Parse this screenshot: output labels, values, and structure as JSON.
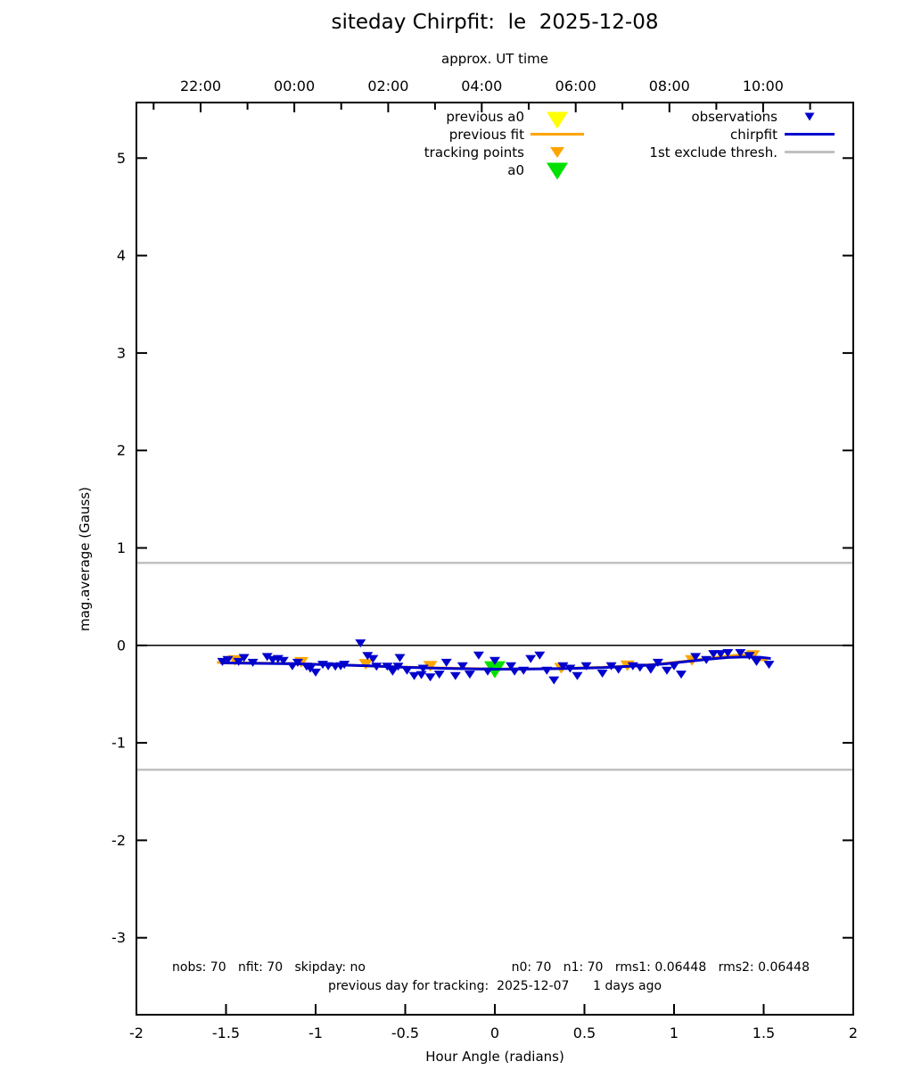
{
  "title": "siteday Chirpfit:  le  2025-12-08",
  "stats": {
    "line1_left": "nobs: 70   nfit: 70   skipday: no",
    "line1_right": "n0: 70   n1: 70   rms1: 0.06448   rms2: 0.06448",
    "line2": "previous day for tracking:  2025-12-07      1 days ago"
  },
  "legend": {
    "left": [
      {
        "label": "previous a0",
        "marker": "triangle-large",
        "color": "#ffff00"
      },
      {
        "label": "previous fit",
        "marker": "line",
        "color": "#ffa500"
      },
      {
        "label": "tracking points",
        "marker": "triangle-small",
        "color": "#ffa500"
      },
      {
        "label": "a0",
        "marker": "triangle-large",
        "color": "#00e000"
      }
    ],
    "right": [
      {
        "label": "observations",
        "marker": "triangle-tiny",
        "color": "#0000cd"
      },
      {
        "label": "chirpfit",
        "marker": "line",
        "color": "#0000cd"
      },
      {
        "label": "1st exclude thresh.",
        "marker": "line",
        "color": "#c0c0c0"
      }
    ]
  },
  "chart_data": {
    "type": "scatter",
    "title": "siteday Chirpfit:  le  2025-12-08",
    "xlabel": "Hour Angle (radians)",
    "ylabel": "mag.average (Gauss)",
    "xlim": [
      -2,
      2
    ],
    "ylim": [
      -3.79,
      5.57
    ],
    "x_tick_values": [
      -2,
      -1.5,
      -1,
      -0.5,
      0,
      0.5,
      1,
      1.5,
      2
    ],
    "x_tick_labels": [
      "-2",
      "-1.5",
      "-1",
      "-0.5",
      "0",
      "0.5",
      "1",
      "1.5",
      "2"
    ],
    "y_tick_values": [
      -3,
      -2,
      -1,
      0,
      1,
      2,
      3,
      4,
      5
    ],
    "y_tick_labels": [
      "-3",
      "-2",
      "-1",
      "0",
      "1",
      "2",
      "3",
      "4",
      "5"
    ],
    "top_axis": {
      "title": "approx. UT time",
      "tick_labels": [
        "22:00",
        "00:00",
        "02:00",
        "04:00",
        "06:00",
        "08:00",
        "10:00"
      ],
      "tick_positions": [
        -1.642,
        -1.119,
        -0.595,
        -0.073,
        0.451,
        0.974,
        1.497
      ],
      "minor_tick_positions": [
        -1.904,
        -1.38,
        -0.857,
        -0.334,
        0.189,
        0.712,
        1.236,
        1.759
      ]
    },
    "zero_line": 0,
    "exclude_thresholds": [
      0.846,
      -1.276
    ],
    "colors": {
      "observations": "#0000cd",
      "chirpfit": "#0000cd",
      "previous_fit": "#ffa500",
      "tracking_points": "#ffa500",
      "a0": "#00e000",
      "previous_a0": "#ffff00",
      "exclude_threshold": "#c0c0c0",
      "axis": "#000000"
    },
    "observations": [
      [
        -1.52,
        -0.17
      ],
      [
        -1.49,
        -0.15
      ],
      [
        -1.43,
        -0.17
      ],
      [
        -1.4,
        -0.13
      ],
      [
        -1.35,
        -0.18
      ],
      [
        -1.27,
        -0.12
      ],
      [
        -1.24,
        -0.15
      ],
      [
        -1.21,
        -0.14
      ],
      [
        -1.18,
        -0.16
      ],
      [
        -1.13,
        -0.215
      ],
      [
        -1.1,
        -0.18
      ],
      [
        -1.05,
        -0.22
      ],
      [
        -1.03,
        -0.24
      ],
      [
        -1.0,
        -0.28
      ],
      [
        -0.96,
        -0.2
      ],
      [
        -0.93,
        -0.215
      ],
      [
        -0.89,
        -0.22
      ],
      [
        -0.86,
        -0.215
      ],
      [
        -0.84,
        -0.2
      ],
      [
        -0.75,
        0.02
      ],
      [
        -0.71,
        -0.11
      ],
      [
        -0.68,
        -0.14
      ],
      [
        -0.66,
        -0.22
      ],
      [
        -0.6,
        -0.22
      ],
      [
        -0.57,
        -0.27
      ],
      [
        -0.54,
        -0.22
      ],
      [
        -0.53,
        -0.13
      ],
      [
        -0.49,
        -0.26
      ],
      [
        -0.45,
        -0.315
      ],
      [
        -0.41,
        -0.305
      ],
      [
        -0.4,
        -0.24
      ],
      [
        -0.36,
        -0.33
      ],
      [
        -0.31,
        -0.3
      ],
      [
        -0.27,
        -0.18
      ],
      [
        -0.22,
        -0.315
      ],
      [
        -0.18,
        -0.215
      ],
      [
        -0.14,
        -0.3
      ],
      [
        -0.09,
        -0.105
      ],
      [
        -0.04,
        -0.27
      ],
      [
        0.0,
        -0.16
      ],
      [
        0.09,
        -0.215
      ],
      [
        0.11,
        -0.27
      ],
      [
        0.16,
        -0.26
      ],
      [
        0.2,
        -0.14
      ],
      [
        0.25,
        -0.105
      ],
      [
        0.29,
        -0.26
      ],
      [
        0.33,
        -0.36
      ],
      [
        0.38,
        -0.215
      ],
      [
        0.42,
        -0.24
      ],
      [
        0.46,
        -0.315
      ],
      [
        0.51,
        -0.215
      ],
      [
        0.6,
        -0.29
      ],
      [
        0.65,
        -0.215
      ],
      [
        0.69,
        -0.25
      ],
      [
        0.77,
        -0.215
      ],
      [
        0.81,
        -0.23
      ],
      [
        0.87,
        -0.25
      ],
      [
        0.91,
        -0.18
      ],
      [
        0.96,
        -0.26
      ],
      [
        1.0,
        -0.215
      ],
      [
        1.04,
        -0.3
      ],
      [
        1.12,
        -0.12
      ],
      [
        1.18,
        -0.15
      ],
      [
        1.22,
        -0.09
      ],
      [
        1.26,
        -0.09
      ],
      [
        1.3,
        -0.08
      ],
      [
        1.37,
        -0.08
      ],
      [
        1.42,
        -0.11
      ],
      [
        1.46,
        -0.17
      ],
      [
        1.53,
        -0.2
      ]
    ],
    "chirpfit": [
      [
        -1.53,
        -0.18
      ],
      [
        -1.3,
        -0.185
      ],
      [
        -1.1,
        -0.19
      ],
      [
        -0.9,
        -0.2
      ],
      [
        -0.7,
        -0.21
      ],
      [
        -0.5,
        -0.225
      ],
      [
        -0.3,
        -0.235
      ],
      [
        -0.1,
        -0.243
      ],
      [
        0.0,
        -0.245
      ],
      [
        0.2,
        -0.243
      ],
      [
        0.4,
        -0.238
      ],
      [
        0.6,
        -0.228
      ],
      [
        0.8,
        -0.21
      ],
      [
        0.95,
        -0.19
      ],
      [
        1.1,
        -0.16
      ],
      [
        1.2,
        -0.14
      ],
      [
        1.3,
        -0.125
      ],
      [
        1.4,
        -0.118
      ],
      [
        1.48,
        -0.122
      ],
      [
        1.54,
        -0.135
      ]
    ],
    "previous_fit": [
      [
        -1.55,
        -0.175
      ],
      [
        -1.2,
        -0.185
      ],
      [
        -0.9,
        -0.198
      ],
      [
        -0.6,
        -0.218
      ],
      [
        -0.3,
        -0.232
      ],
      [
        0.0,
        -0.242
      ],
      [
        0.3,
        -0.24
      ],
      [
        0.6,
        -0.225
      ],
      [
        0.9,
        -0.195
      ],
      [
        1.1,
        -0.155
      ],
      [
        1.25,
        -0.118
      ],
      [
        1.35,
        -0.1
      ],
      [
        1.42,
        -0.095
      ],
      [
        1.46,
        -0.15
      ],
      [
        1.52,
        -0.145
      ]
    ],
    "tracking_points": [
      [
        -1.45,
        -0.155
      ],
      [
        -1.08,
        -0.175
      ],
      [
        -0.72,
        -0.195
      ],
      [
        -0.36,
        -0.215
      ],
      [
        0.0,
        -0.24
      ],
      [
        0.37,
        -0.235
      ],
      [
        0.74,
        -0.21
      ],
      [
        1.1,
        -0.155
      ],
      [
        1.44,
        -0.105
      ]
    ],
    "a0": [
      0.0,
      -0.25
    ],
    "previous_a0": [
      0.0,
      -0.25
    ],
    "stats": {
      "nobs": 70,
      "nfit": 70,
      "skipday": "no",
      "n0": 70,
      "n1": 70,
      "rms1": 0.06448,
      "rms2": 0.06448,
      "previous_day_for_tracking": "2025-12-07",
      "days_ago": 1
    }
  }
}
